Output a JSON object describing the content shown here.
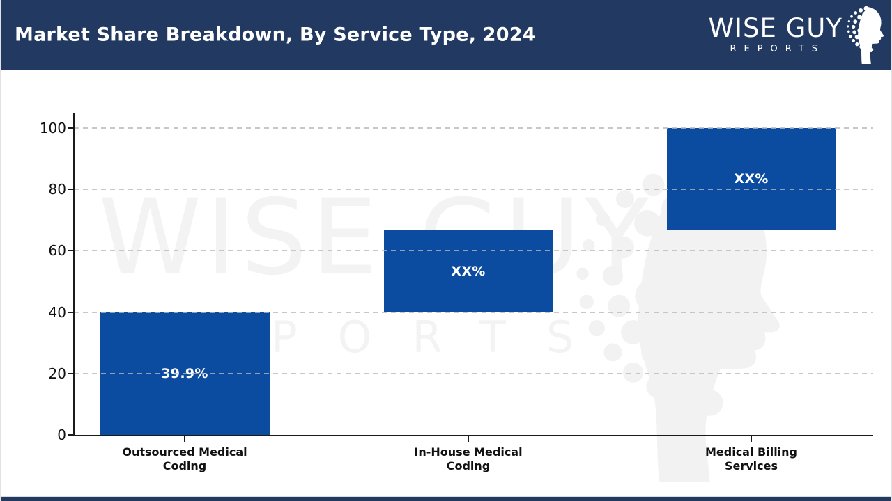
{
  "colors": {
    "header_navy": "#223961",
    "bar_blue": "#0b4ba0",
    "watermark_gray": "#f3f3f3",
    "grid_gray": "#d9d9d9",
    "axis_black": "#1a1a1a",
    "title_white": "#ffffff"
  },
  "header": {
    "title": "Market Share Breakdown, By Service Type, 2024",
    "logo": {
      "line1": "WISE GUY",
      "line2": "REPORTS"
    }
  },
  "watermark": {
    "line1": "WISE GUY",
    "line2": "REPORTS"
  },
  "chart_data": {
    "type": "bar",
    "subtype": "waterfall",
    "title": "Market Share Breakdown, By Service Type, 2024",
    "xlabel": "",
    "ylabel": "",
    "ylim": [
      0,
      100
    ],
    "yticks": [
      0,
      20,
      40,
      60,
      80,
      100
    ],
    "grid": "horizontal dashed, drawn over bars",
    "legend": "none",
    "bar_color": "#0b4ba0",
    "label_color": "#ffffff",
    "categories": [
      [
        "Outsourced Medical",
        "Coding"
      ],
      [
        "In-House Medical",
        "Coding"
      ],
      [
        "Medical Billing",
        "Services"
      ]
    ],
    "segments": [
      {
        "category": "Outsourced Medical Coding",
        "from": 0,
        "to": 39.9,
        "label": "39.9%"
      },
      {
        "category": "In-House Medical Coding",
        "from": 39.9,
        "to": 66.7,
        "label": "XX%"
      },
      {
        "category": "Medical Billing Services",
        "from": 66.7,
        "to": 100,
        "label": "XX%"
      }
    ]
  }
}
